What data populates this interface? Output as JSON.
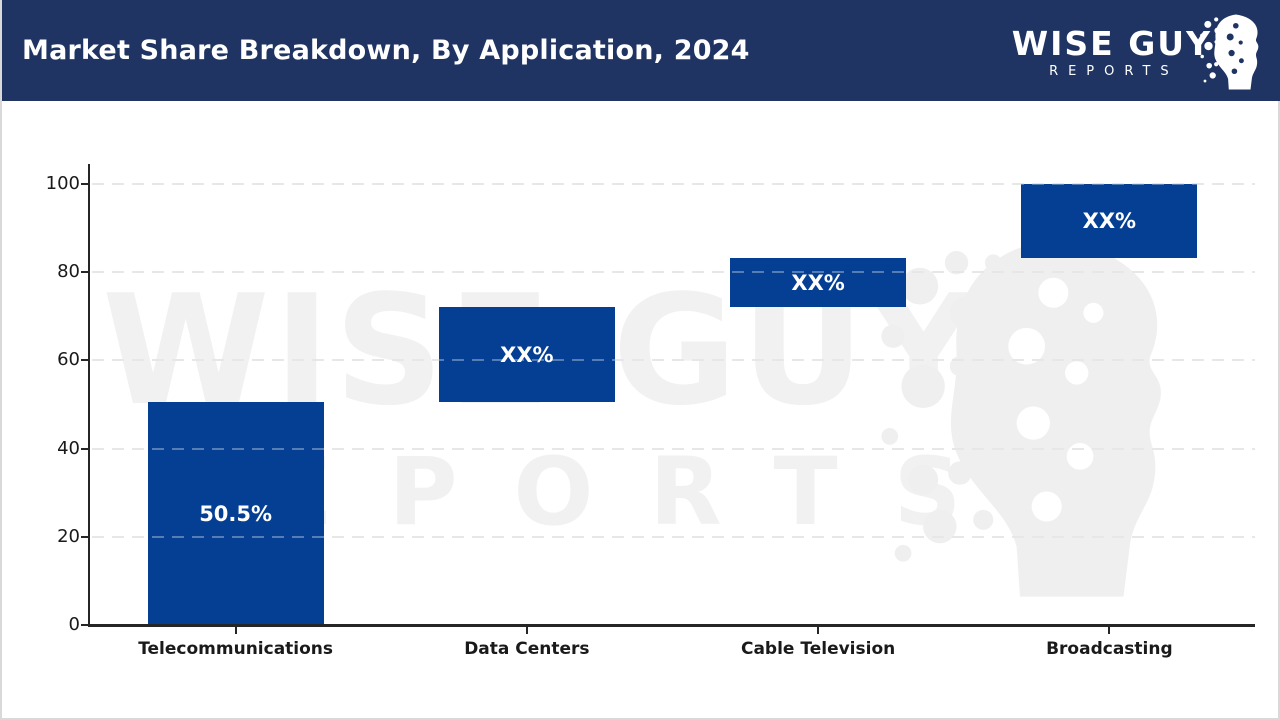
{
  "header": {
    "title": "Market Share Breakdown, By Application, 2024",
    "logo": {
      "line1": "WISE GUY",
      "line2": "REPORTS"
    }
  },
  "watermark": {
    "line1": "WISE GUY",
    "line2": "REPORTS"
  },
  "chart_data": {
    "type": "bar",
    "subtype": "waterfall",
    "title": "Market Share Breakdown, By Application, 2024",
    "categories": [
      "Telecommunications",
      "Data Centers",
      "Cable Television",
      "Broadcasting"
    ],
    "series": [
      {
        "name": "Market Share",
        "segments": [
          {
            "category": "Telecommunications",
            "start": 0,
            "end": 50.5,
            "label": "50.5%"
          },
          {
            "category": "Data Centers",
            "start": 50.5,
            "end": 72,
            "label": "XX%"
          },
          {
            "category": "Cable Television",
            "start": 72,
            "end": 83.3,
            "label": "XX%"
          },
          {
            "category": "Broadcasting",
            "start": 83.3,
            "end": 100,
            "label": "XX%"
          }
        ]
      }
    ],
    "xlabel": "",
    "ylabel": "",
    "ylim": [
      0,
      100
    ],
    "y_ticks": [
      0,
      20,
      40,
      60,
      80,
      100
    ],
    "grid": "horizontal-dashed",
    "legend": "none"
  },
  "colors": {
    "header_bg": "#1f3463",
    "bar": "#043f94",
    "bar_label": "#ffffff",
    "axis": "#262626",
    "grid": "#dcdcdc",
    "watermark": "#f1f1f1",
    "title_text": "#ffffff",
    "tick_text": "#1a1a1a"
  }
}
